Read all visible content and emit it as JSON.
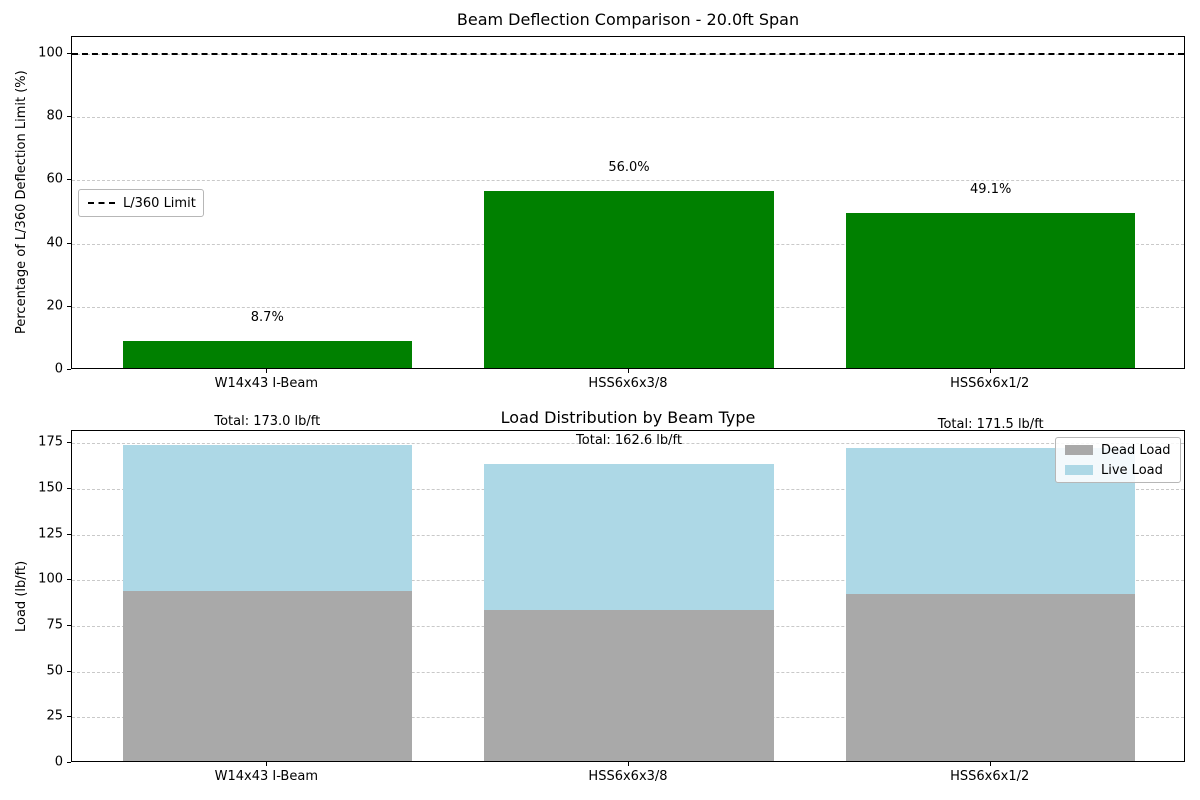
{
  "figure": {
    "background": "#ffffff"
  },
  "chart_data": [
    {
      "type": "bar",
      "title": "Beam Deflection Comparison - 20.0ft Span",
      "ylabel": "Percentage of L/360 Deflection Limit (%)",
      "xlabel": "",
      "categories": [
        "W14x43 I-Beam",
        "HSS6x6x3/8",
        "HSS6x6x1/2"
      ],
      "values": [
        8.7,
        56.0,
        49.1
      ],
      "bar_labels": [
        "8.7%",
        "56.0%",
        "49.1%"
      ],
      "bar_color": "#008000",
      "ylim": [
        0,
        105.4
      ],
      "yticks": [
        0,
        20,
        40,
        60,
        80,
        100
      ],
      "grid": "dashed-y",
      "limit_line": {
        "value": 100,
        "label": "L/360 Limit",
        "color": "#000000",
        "style": "dashed"
      },
      "legend": {
        "position": "center-left",
        "entries": [
          {
            "label": "L/360 Limit",
            "type": "dashed-line",
            "color": "#000000"
          }
        ]
      }
    },
    {
      "type": "stacked-bar",
      "title": "Load Distribution by Beam Type",
      "ylabel": "Load (lb/ft)",
      "xlabel": "",
      "categories": [
        "W14x43 I-Beam",
        "HSS6x6x3/8",
        "HSS6x6x1/2"
      ],
      "series": [
        {
          "name": "Dead Load",
          "values": [
            93.0,
            82.6,
            91.5
          ],
          "color": "#a9a9a9"
        },
        {
          "name": "Live Load",
          "values": [
            80.0,
            80.0,
            80.0
          ],
          "color": "#add8e6"
        }
      ],
      "totals": [
        173.0,
        162.6,
        171.5
      ],
      "total_labels": [
        "Total: 173.0 lb/ft",
        "Total: 162.6 lb/ft",
        "Total: 171.5 lb/ft"
      ],
      "ylim": [
        0,
        181.7
      ],
      "yticks": [
        0,
        25,
        50,
        75,
        100,
        125,
        150,
        175
      ],
      "grid": "dashed-y",
      "legend": {
        "position": "upper-right",
        "entries": [
          {
            "label": "Dead Load",
            "type": "patch",
            "color": "#a9a9a9"
          },
          {
            "label": "Live Load",
            "type": "patch",
            "color": "#add8e6"
          }
        ]
      }
    }
  ]
}
